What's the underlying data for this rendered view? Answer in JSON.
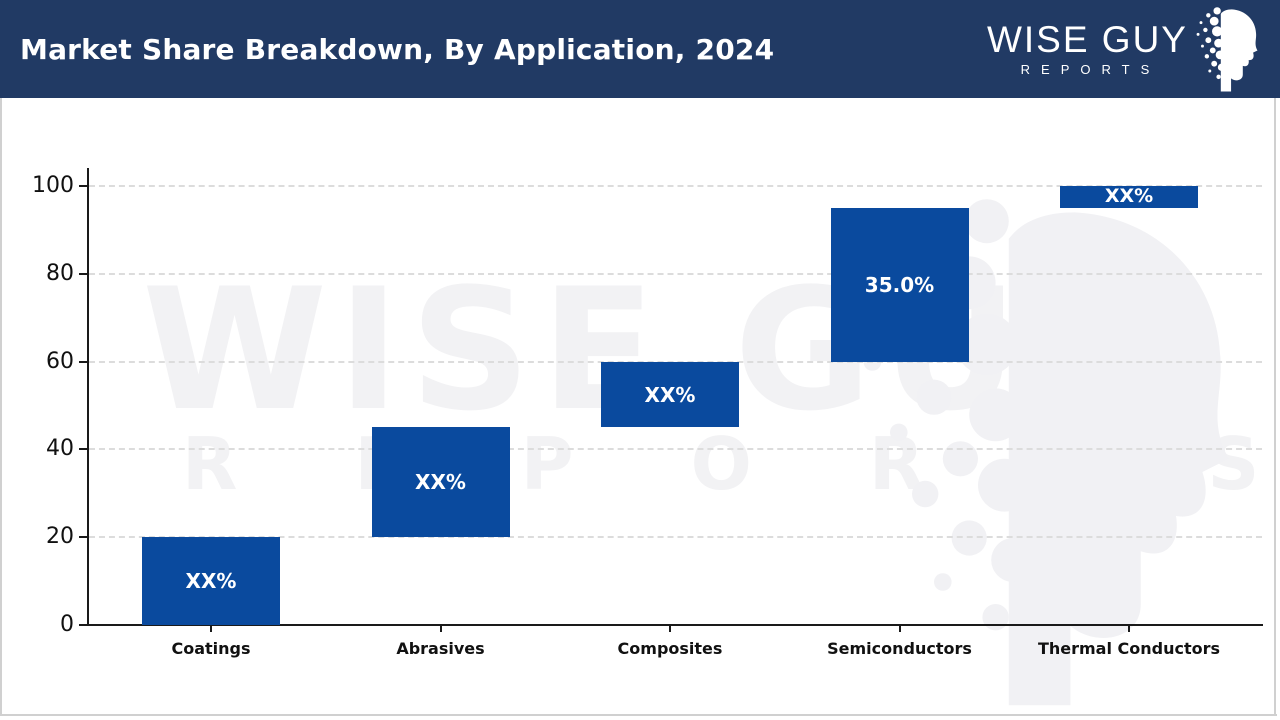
{
  "header": {
    "title": "Market Share Breakdown, By Application, 2024",
    "bg_color": "#213a64",
    "logo": {
      "line1": "WISE GUY",
      "line2": "REPORTS"
    }
  },
  "watermark": {
    "line1": "WISE GUY",
    "line2": "R E P O R T S"
  },
  "chart_data": {
    "type": "bar",
    "variant": "waterfall",
    "title": "Market Share Breakdown, By Application, 2024",
    "categories": [
      "Coatings",
      "Abrasives",
      "Composites",
      "Semiconductors",
      "Thermal Conductors"
    ],
    "bars": [
      {
        "category": "Coatings",
        "start": 0,
        "end": 20,
        "value": 20,
        "label": "XX%"
      },
      {
        "category": "Abrasives",
        "start": 20,
        "end": 45,
        "value": 25,
        "label": "XX%"
      },
      {
        "category": "Composites",
        "start": 45,
        "end": 60,
        "value": 15,
        "label": "XX%"
      },
      {
        "category": "Semiconductors",
        "start": 60,
        "end": 95,
        "value": 35,
        "label": "35.0%"
      },
      {
        "category": "Thermal Conductors",
        "start": 95,
        "end": 100,
        "value": 5,
        "label": "XX%"
      }
    ],
    "yticks": [
      0,
      20,
      40,
      60,
      80,
      100
    ],
    "ylim": [
      0,
      104
    ],
    "xlabel": "",
    "ylabel": "",
    "grid": {
      "axis": "y",
      "style": "dashed",
      "color": "#dcdcdc"
    },
    "legend": null,
    "colors": {
      "bar": "#0a4a9e",
      "bar_label": "#ffffff",
      "axis": "#1a1a1a",
      "tick_label": "#111111"
    }
  }
}
